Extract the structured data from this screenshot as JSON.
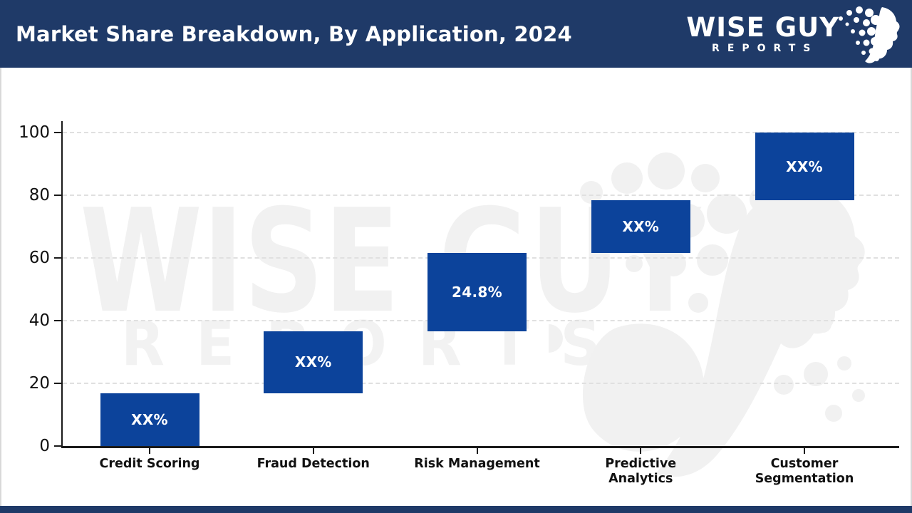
{
  "header": {
    "title": "Market Share Breakdown, By Application, 2024",
    "logo": {
      "line1": "WISE GUY",
      "line2": "REPORTS"
    }
  },
  "watermark": {
    "line1": "WISE GUY",
    "line2": "REPORTS"
  },
  "colors": {
    "header_bg": "#1f3a68",
    "bar": "#0c439b",
    "grid": "#e0e0e0",
    "watermark": "#f1f1f1",
    "axis": "#1a1a1a"
  },
  "chart_data": {
    "type": "bar",
    "subtype": "waterfall-floating",
    "title": "Market Share Breakdown, By Application, 2024",
    "xlabel": "",
    "ylabel": "",
    "ylim": [
      0,
      104
    ],
    "yticks": [
      0,
      20,
      40,
      60,
      80,
      100
    ],
    "grid": "horizontal-dashed",
    "legend": "none",
    "categories": [
      "Credit Scoring",
      "Fraud Detection",
      "Risk Management",
      "Predictive Analytics",
      "Customer Segmentation"
    ],
    "tick_labels": [
      [
        "Credit Scoring"
      ],
      [
        "Fraud Detection"
      ],
      [
        "Risk Management"
      ],
      [
        "Predictive",
        "Analytics"
      ],
      [
        "Customer",
        "Segmentation"
      ]
    ],
    "segments": [
      {
        "category": "Credit Scoring",
        "start": 0,
        "end": 16.8,
        "value": 16.8,
        "label": "XX%"
      },
      {
        "category": "Fraud Detection",
        "start": 16.8,
        "end": 36.7,
        "value": 19.9,
        "label": "XX%"
      },
      {
        "category": "Risk Management",
        "start": 36.7,
        "end": 61.5,
        "value": 24.8,
        "label": "24.8%"
      },
      {
        "category": "Predictive Analytics",
        "start": 61.5,
        "end": 78.4,
        "value": 16.9,
        "label": "XX%"
      },
      {
        "category": "Customer Segmentation",
        "start": 78.4,
        "end": 100,
        "value": 21.6,
        "label": "XX%"
      }
    ],
    "bar_color": "#0c439b"
  }
}
